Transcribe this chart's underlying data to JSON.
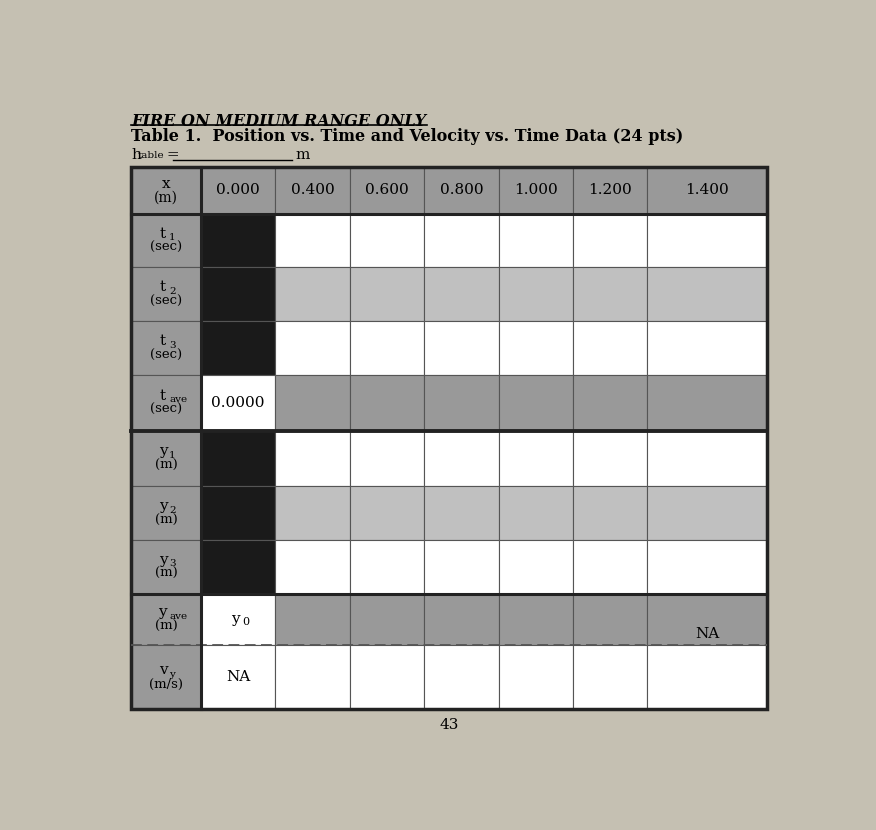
{
  "title_line1": "FIRE ON MEDIUM RANGE ONLY",
  "title_line2": "Table 1.  Position vs. Time and Velocity vs. Time Data (24 pts)",
  "page_number": "43",
  "col_vals": [
    "0.000",
    "0.400",
    "0.600",
    "0.800",
    "1.000",
    "1.200",
    "1.400"
  ],
  "tave_val": "0.0000",
  "yave_col0_main": "y",
  "yave_col0_sub": "0",
  "vy_col0": "NA",
  "yave_col6": "NA",
  "gray_header": "#999999",
  "gray_ave": "#999999",
  "gray_data_alt": "#c0c0c0",
  "white_cell": "#ffffff",
  "black_cell": "#1a1a1a",
  "bg_color": "#c5c0b2",
  "border_dark": "#222222",
  "border_mid": "#555555"
}
